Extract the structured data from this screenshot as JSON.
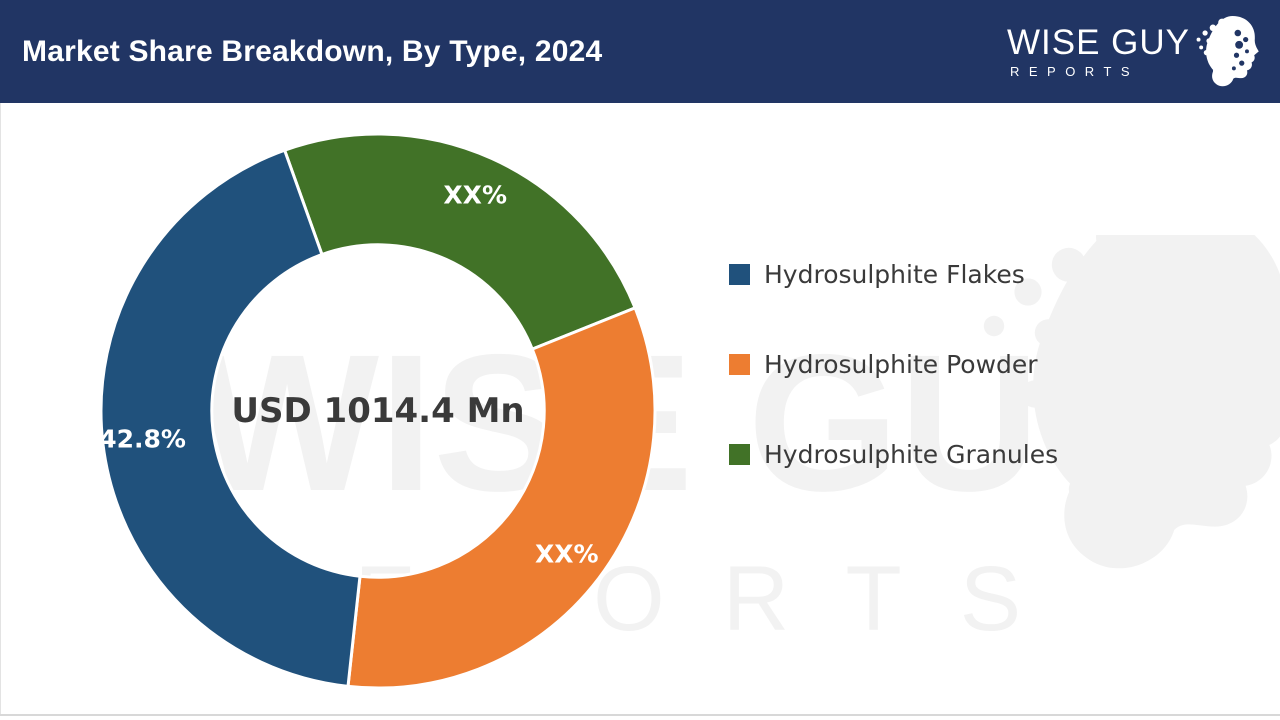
{
  "header": {
    "title": "Market Share Breakdown, By Type, 2024",
    "bg_color": "#213564",
    "logo": {
      "name": "WISE GUY",
      "sub": "REPORTS"
    }
  },
  "watermark": {
    "name": "WISE GUY",
    "sub": "REPORTS"
  },
  "chart_data": {
    "type": "pie",
    "subtype": "donut",
    "title": "Market Share Breakdown, By Type, 2024",
    "center_label": "USD 1014.4 Mn",
    "start_angle_deg": -19.7,
    "inner_radius_ratio": 0.6,
    "legend_position": "right",
    "segments": [
      {
        "label": "Hydrosulphite Granules",
        "value_label": "XX%",
        "pct": 24.4,
        "color": "#417227"
      },
      {
        "label": "Hydrosulphite Powder",
        "value_label": "XX%",
        "pct": 32.8,
        "color": "#ED7D31"
      },
      {
        "label": "Hydrosulphite Flakes",
        "value_label": "42.8%",
        "pct": 42.8,
        "color": "#20517C"
      }
    ],
    "legend_order": [
      "Hydrosulphite Flakes",
      "Hydrosulphite Powder",
      "Hydrosulphite Granules"
    ],
    "colors": {
      "label_text": "#ffffff",
      "center_text": "#3a3a3a",
      "legend_text": "#3a3a3a"
    }
  }
}
